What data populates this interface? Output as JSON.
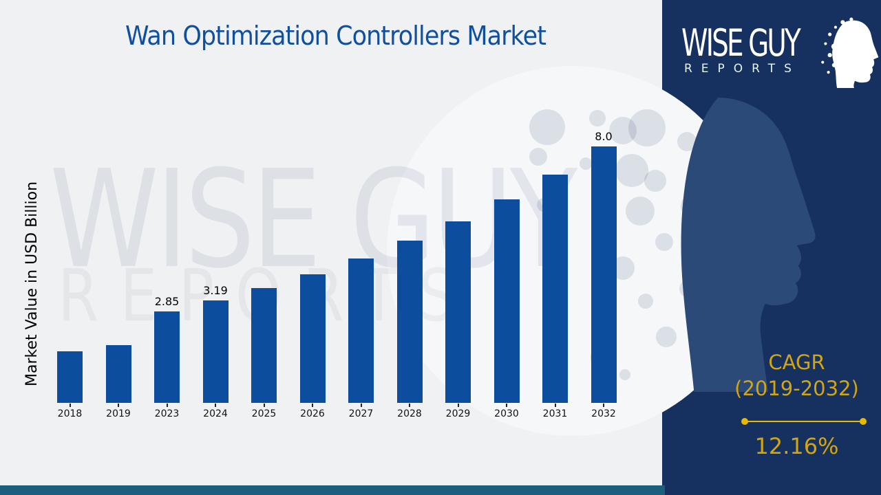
{
  "page": {
    "title": "Wan Optimization Controllers Market"
  },
  "axis": {
    "y_label": "Market Value in USD Billion"
  },
  "watermark": {
    "line1": "WISE GUY",
    "line2": "REPORTS"
  },
  "logo": {
    "line1": "WISE GUY",
    "line2": "REPORTS",
    "head_icon": "dotted-head-profile-icon"
  },
  "cagr": {
    "label": "CAGR",
    "range": "(2019-2032)",
    "value": "12.16%"
  },
  "chart_data": {
    "type": "bar",
    "title": "Wan Optimization Controllers Market",
    "xlabel": "",
    "ylabel": "Market Value in USD Billion",
    "categories": [
      "2018",
      "2019",
      "2023",
      "2024",
      "2025",
      "2026",
      "2027",
      "2028",
      "2029",
      "2030",
      "2031",
      "2032"
    ],
    "values": [
      1.61,
      1.8,
      2.85,
      3.19,
      3.58,
      4.02,
      4.51,
      5.06,
      5.67,
      6.36,
      7.13,
      8.0
    ],
    "data_labels": [
      "",
      "",
      "2.85",
      "3.19",
      "",
      "",
      "",
      "",
      "",
      "",
      "",
      "8.0"
    ],
    "ylim": [
      0,
      8.7
    ],
    "grid": false,
    "legend": null,
    "bar_color": "#0d4d9e"
  },
  "colors": {
    "background": "#f0f1f2",
    "panel_navy": "#16315f",
    "face_navy": "#2b4a77",
    "bar_blue": "#0d4d9e",
    "title_blue": "#0f4fa0",
    "gold_text": "#d2a512",
    "gold_line": "#e8ba00",
    "teal_strip": "#1b5f7d"
  }
}
